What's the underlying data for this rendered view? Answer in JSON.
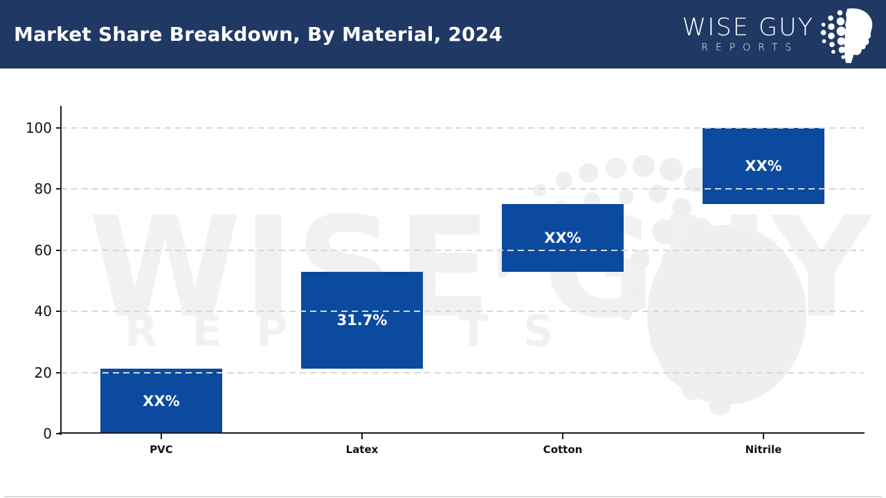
{
  "header": {
    "title": "Market Share Breakdown, By Material, 2024",
    "bg_color": "#203864",
    "logo": {
      "line1": "WISE GUY",
      "line2": "REPORTS"
    }
  },
  "watermark": {
    "line1": "WISE GUY",
    "line2": "REPORTS"
  },
  "chart_data": {
    "type": "bar",
    "subtype": "waterfall",
    "title": "Market Share Breakdown, By Material, 2024",
    "categories": [
      "PVC",
      "Latex",
      "Cotton",
      "Nitrile"
    ],
    "series": [
      {
        "category": "PVC",
        "start": 0,
        "end": 21.3,
        "label": "XX%"
      },
      {
        "category": "Latex",
        "start": 21.3,
        "end": 53.0,
        "label": "31.7%"
      },
      {
        "category": "Cotton",
        "start": 53.0,
        "end": 75.1,
        "label": "XX%"
      },
      {
        "category": "Nitrile",
        "start": 75.1,
        "end": 100,
        "label": "XX%"
      }
    ],
    "xlabel": "",
    "ylabel": "",
    "ylim": [
      0,
      100
    ],
    "yticks": [
      0,
      20,
      40,
      60,
      80,
      100
    ],
    "ytick_labels": [
      "0",
      "20",
      "40",
      "60",
      "80",
      "100"
    ],
    "grid": "dashed-horizontal",
    "legend": "none",
    "bar_color": "#0b4a9e",
    "grid_color": "#d8d8d8",
    "axis_color": "#1a1a1a"
  }
}
